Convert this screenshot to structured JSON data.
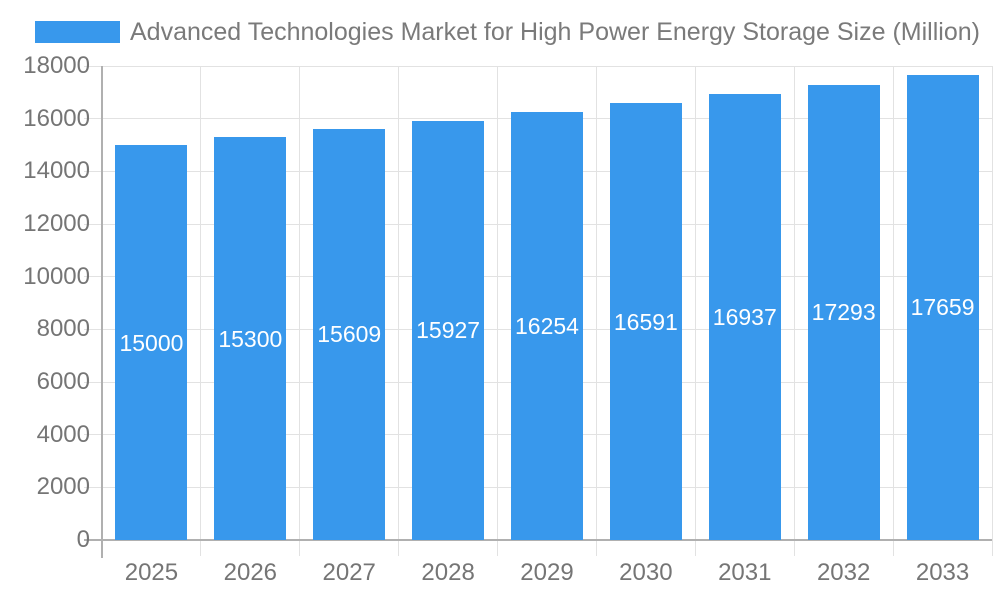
{
  "legend": {
    "series_label": "Advanced Technologies Market for High Power Energy Storage Size (Million)"
  },
  "colors": {
    "bar": "#3898ec",
    "bar_label": "#ffffff",
    "legend_text": "#7a7a7a",
    "axis_text": "#757575",
    "grid_line": "#e2e2e2",
    "axis_line": "#b0b0b0",
    "background": "#ffffff"
  },
  "chart_data": {
    "type": "bar",
    "title": "Advanced Technologies Market for High Power Energy Storage Size (Million)",
    "categories": [
      "2025",
      "2026",
      "2027",
      "2028",
      "2029",
      "2030",
      "2031",
      "2032",
      "2033"
    ],
    "values": [
      15000,
      15300,
      15609,
      15927,
      16254,
      16591,
      16937,
      17293,
      17659
    ],
    "bar_labels": [
      15000,
      15300,
      15609,
      15927,
      16254,
      16591,
      16937,
      17293,
      17659
    ],
    "xlabel": "",
    "ylabel": "",
    "ylim": [
      0,
      18000
    ],
    "ytick_step": 2000,
    "yticks": [
      0,
      2000,
      4000,
      6000,
      8000,
      10000,
      12000,
      14000,
      16000,
      18000
    ],
    "grid": true,
    "grid_horizontal": true,
    "grid_vertical": true,
    "legend_position": "top-left",
    "value_labels_inside_bars": true
  }
}
